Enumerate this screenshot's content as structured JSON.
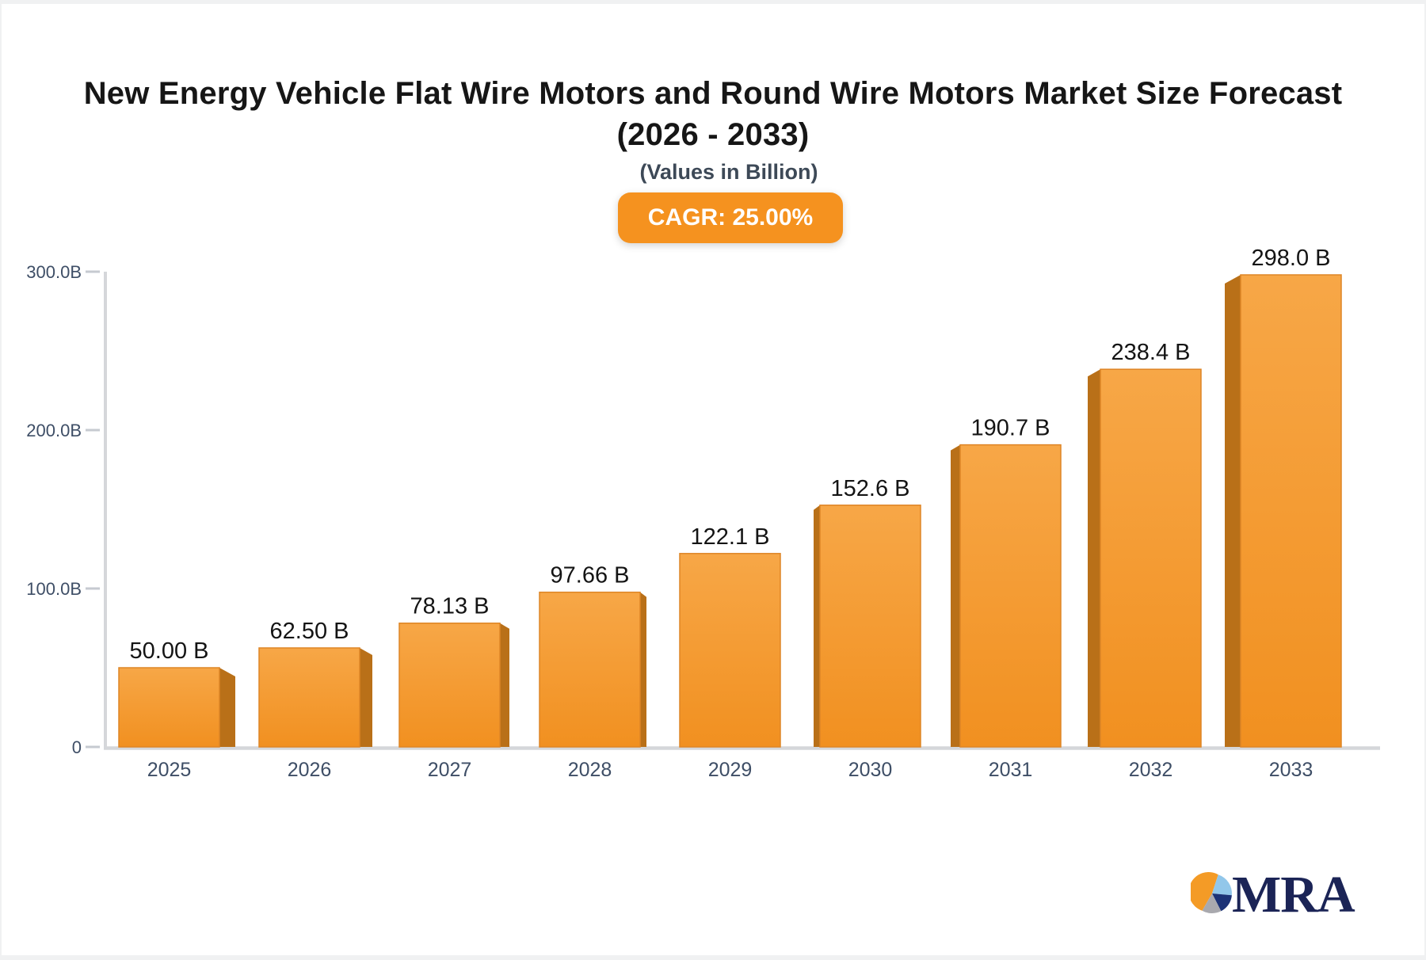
{
  "page": {
    "title_main": "New Energy Vehicle Flat Wire Motors and Round Wire Motors Market Size Forecast",
    "title_range": "(2026 - 2033)",
    "subtitle": "(Values in Billion)",
    "cagr_label": "CAGR: 25.00%"
  },
  "colors": {
    "bar_front_top": "#f7a747",
    "bar_front_bottom": "#f19020",
    "bar_edge": "#de8526",
    "bar_side": "#b97018",
    "axis_line": "#d5d7da",
    "tick_mark": "#c6cad0",
    "axis_text": "#3e4e66",
    "value_text": "#141414",
    "badge_bg": "#f5921f",
    "badge_text": "#ffffff",
    "logo_orange": "#f49b26",
    "logo_lightblue": "#92c7ea",
    "logo_navy": "#1c3276",
    "logo_grey": "#a9a9ae",
    "logo_text": "#1b2456"
  },
  "chart_data": {
    "type": "bar",
    "title": "New Energy Vehicle Flat Wire Motors and Round Wire Motors Market Size Forecast (2026 - 2033)",
    "subtitle": "(Values in Billion)",
    "annotation": "CAGR: 25.00%",
    "categories": [
      "2025",
      "2026",
      "2027",
      "2028",
      "2029",
      "2030",
      "2031",
      "2032",
      "2033"
    ],
    "values": [
      50.0,
      62.5,
      78.13,
      97.66,
      122.1,
      152.6,
      190.7,
      238.4,
      298.0
    ],
    "value_labels": [
      "50.00 B",
      "62.50 B",
      "78.13 B",
      "97.66 B",
      "122.1 B",
      "152.6 B",
      "190.7 B",
      "238.4 B",
      "298.0 B"
    ],
    "xlabel": "",
    "ylabel": "",
    "ylim": [
      0,
      300
    ],
    "yticks": [
      {
        "value": 300,
        "label": "300.0B"
      },
      {
        "value": 200,
        "label": "200.0B"
      },
      {
        "value": 100,
        "label": "100.0B"
      },
      {
        "value": 0,
        "label": "0"
      }
    ],
    "grid": false,
    "legend": false,
    "bar_style": "3d-perspective-center"
  },
  "logo": {
    "text": "MRA"
  }
}
